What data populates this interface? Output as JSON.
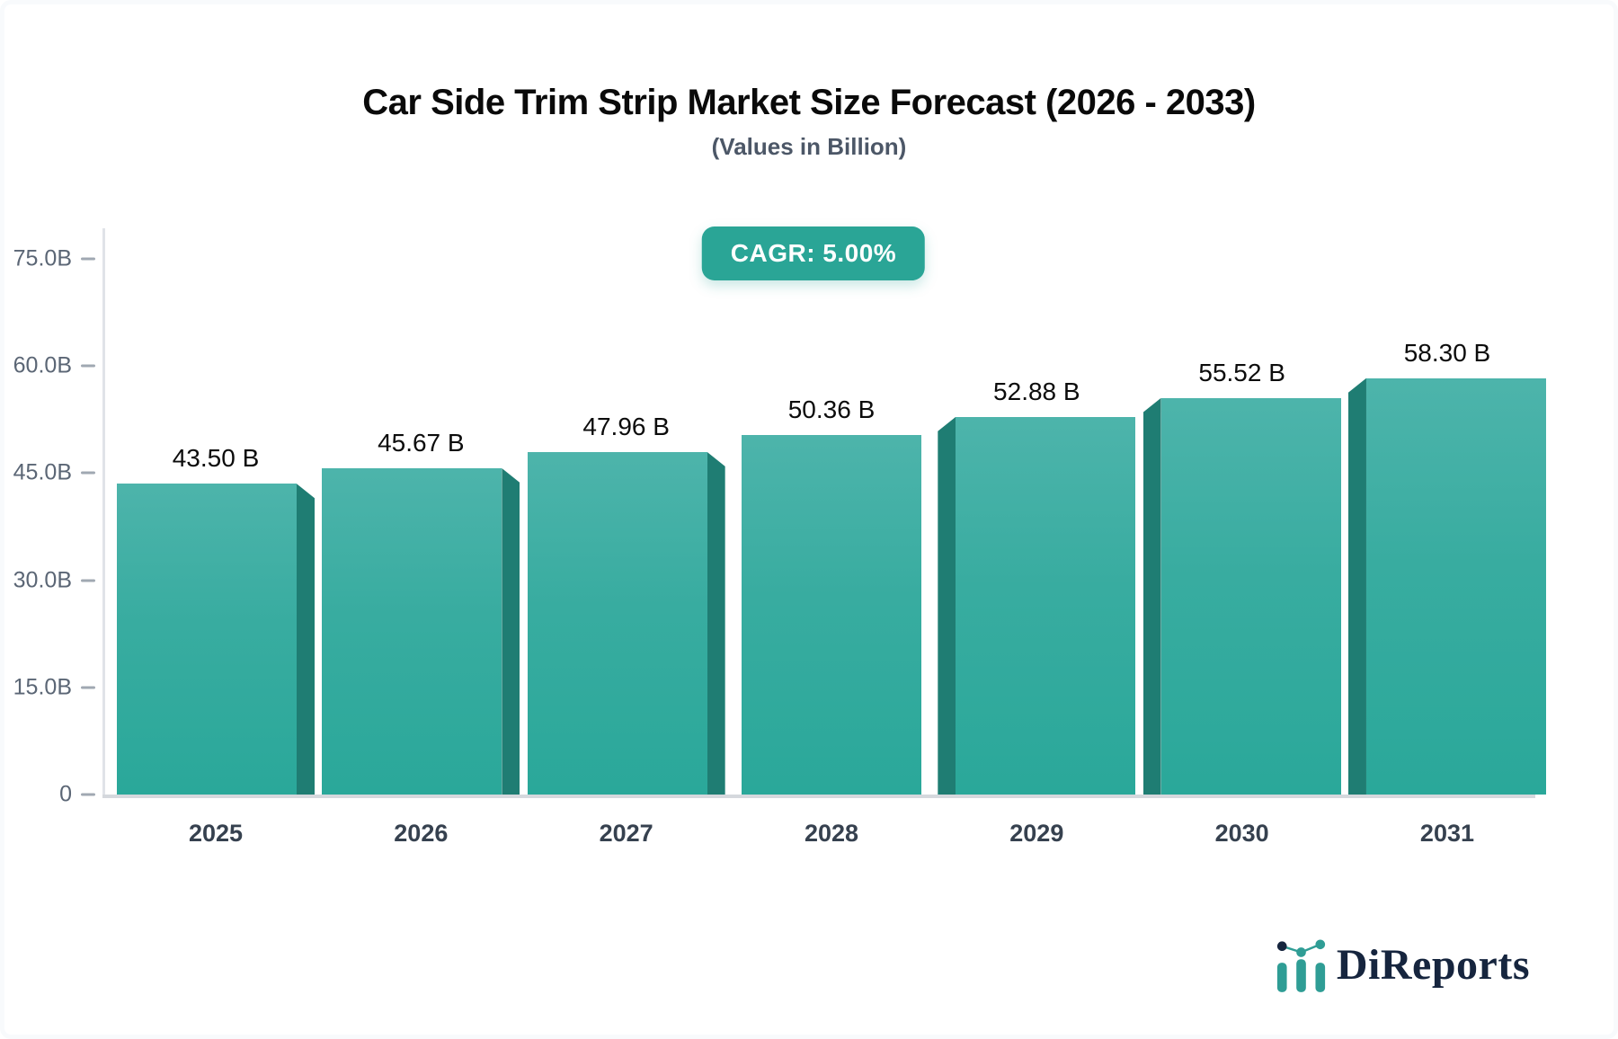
{
  "header": {
    "title": "Car Side Trim Strip Market Size Forecast (2026 - 2033)",
    "subtitle": "(Values in Billion)",
    "cagr_badge": "CAGR: 5.00%"
  },
  "chart_data": {
    "type": "bar",
    "title": "Car Side Trim Strip Market Size Forecast (2026 - 2033)",
    "subtitle": "(Values in Billion)",
    "cagr_label": "CAGR: 5.00%",
    "cagr_percent": 5.0,
    "unit": "Billion",
    "categories": [
      "2025",
      "2026",
      "2027",
      "2028",
      "2029",
      "2030",
      "2031"
    ],
    "values": [
      43.5,
      45.67,
      47.96,
      50.36,
      52.88,
      55.52,
      58.3
    ],
    "bar_labels": [
      "43.50 B",
      "45.67 B",
      "47.96 B",
      "50.36 B",
      "52.88 B",
      "55.52 B",
      "58.30 B"
    ],
    "ylim": [
      0,
      75
    ],
    "y_ticks": [
      {
        "value": 0,
        "label": "0"
      },
      {
        "value": 15,
        "label": "15.0B"
      },
      {
        "value": 30,
        "label": "30.0B"
      },
      {
        "value": 45,
        "label": "45.0B"
      },
      {
        "value": 60,
        "label": "60.0B"
      },
      {
        "value": 75,
        "label": "75.0B"
      }
    ],
    "grid": false,
    "legend": false,
    "bar_color_top": "#4db4ab",
    "bar_color_bottom": "#2aa89a",
    "bar_side_color": "#1f7d73"
  },
  "footer": {
    "logo_text": "DiReports",
    "logo_icon": "bar-chart-icon"
  },
  "colors": {
    "accent_teal": "#2aa596",
    "logo_navy": "#16253e",
    "axis_line": "#d5d8dd",
    "tick_text": "#5b6675",
    "year_text": "#36414f",
    "title_text": "#0a0a0a"
  }
}
